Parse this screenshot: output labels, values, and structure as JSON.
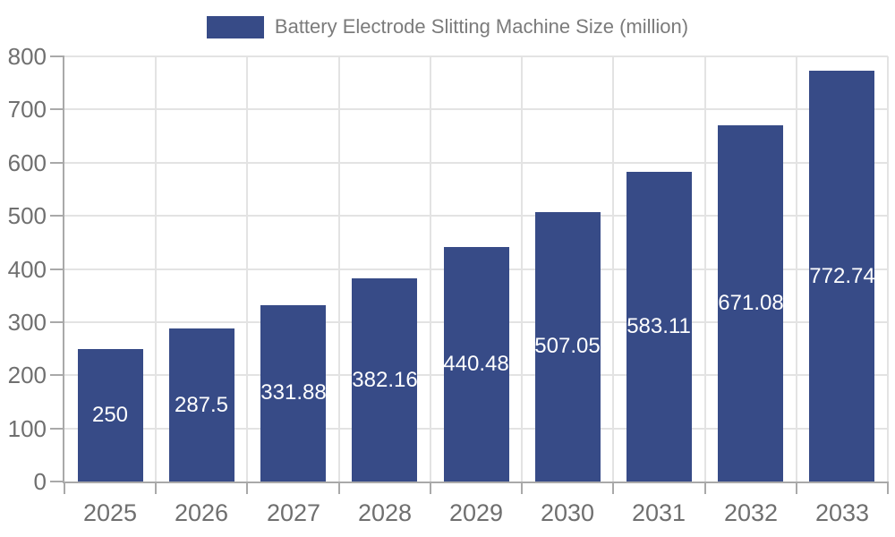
{
  "legend": {
    "label": "Battery Electrode Slitting Machine Size (million)"
  },
  "colors": {
    "bar": "#374B87",
    "axis_line": "#a9a9a9",
    "gridline": "#e3e3e3",
    "tick_label": "#6f6f6f",
    "legend_text": "#7b7b7b",
    "value_label": "#ffffff",
    "background": "#ffffff"
  },
  "chart_data": {
    "type": "bar",
    "title": "Battery Electrode Slitting Machine Size (million)",
    "categories": [
      "2025",
      "2026",
      "2027",
      "2028",
      "2029",
      "2030",
      "2031",
      "2032",
      "2033"
    ],
    "series": [
      {
        "name": "Battery Electrode Slitting Machine Size (million)",
        "values": [
          250,
          287.5,
          331.88,
          382.16,
          440.48,
          507.05,
          583.11,
          671.08,
          772.74
        ]
      }
    ],
    "value_labels": [
      "250",
      "287.5",
      "331.88",
      "382.16",
      "440.48",
      "507.05",
      "583.11",
      "671.08",
      "772.74"
    ],
    "value_label_position": "middle-of-bar",
    "xlabel": "",
    "ylabel": "",
    "ylim": [
      0,
      800
    ],
    "yticks": [
      0,
      100,
      200,
      300,
      400,
      500,
      600,
      700,
      800
    ],
    "grid": true,
    "legend_position": "top"
  }
}
